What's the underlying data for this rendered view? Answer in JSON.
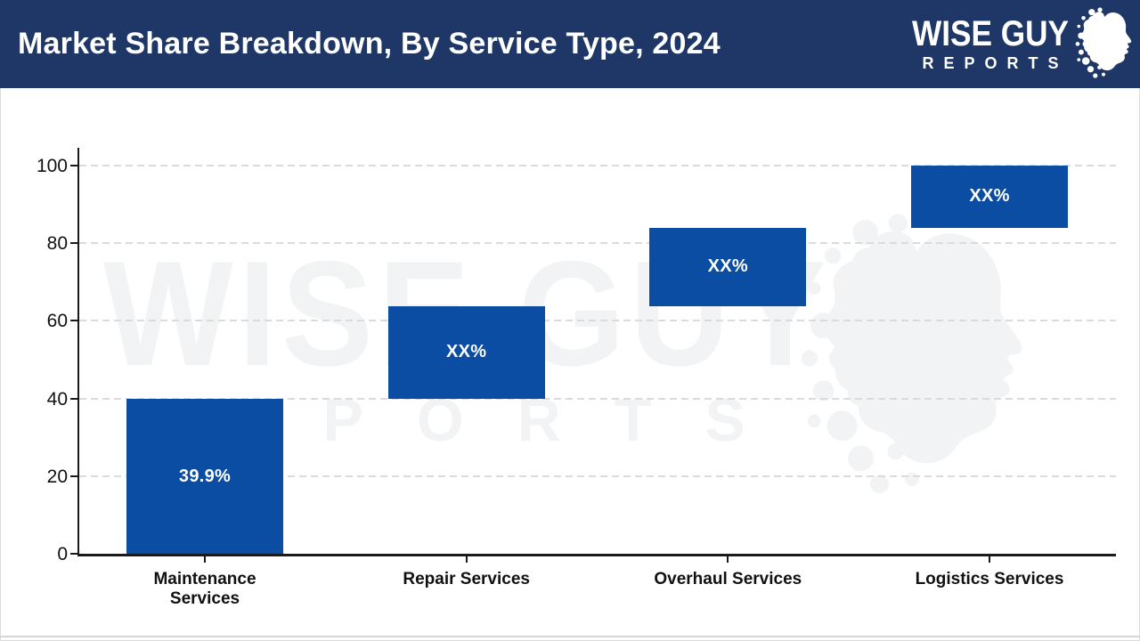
{
  "header": {
    "title": "Market Share Breakdown, By Service Type, 2024",
    "logo": {
      "line1": "WISE GUY",
      "line2": "REPORTS"
    }
  },
  "watermark": {
    "line1": "WISE GUY",
    "line2": "REPORTS"
  },
  "colors": {
    "header_bg": "#1E3766",
    "bar": "#0B4DA2",
    "gridline": "#DBDBDB",
    "axis": "#1A1A1A",
    "bar_label": "#FFFFFF",
    "watermark": "#F2F3F4"
  },
  "chart_data": {
    "type": "bar",
    "subtype": "waterfall",
    "title": "Market Share Breakdown, By Service Type, 2024",
    "categories": [
      "Maintenance\nServices",
      "Repair Services",
      "Overhaul Services",
      "Logistics Services"
    ],
    "segments": [
      {
        "category": "Maintenance Services",
        "start": 0,
        "end": 39.9,
        "label": "39.9%"
      },
      {
        "category": "Repair Services",
        "start": 39.9,
        "end": 63.8,
        "label": "XX%"
      },
      {
        "category": "Overhaul Services",
        "start": 63.8,
        "end": 84.0,
        "label": "XX%"
      },
      {
        "category": "Logistics Services",
        "start": 84.0,
        "end": 100.0,
        "label": "XX%"
      }
    ],
    "ylim": [
      0,
      100
    ],
    "yticks": [
      0,
      20,
      40,
      60,
      80,
      100
    ],
    "grid": "dashed horizontal gridlines",
    "legend": "none"
  }
}
